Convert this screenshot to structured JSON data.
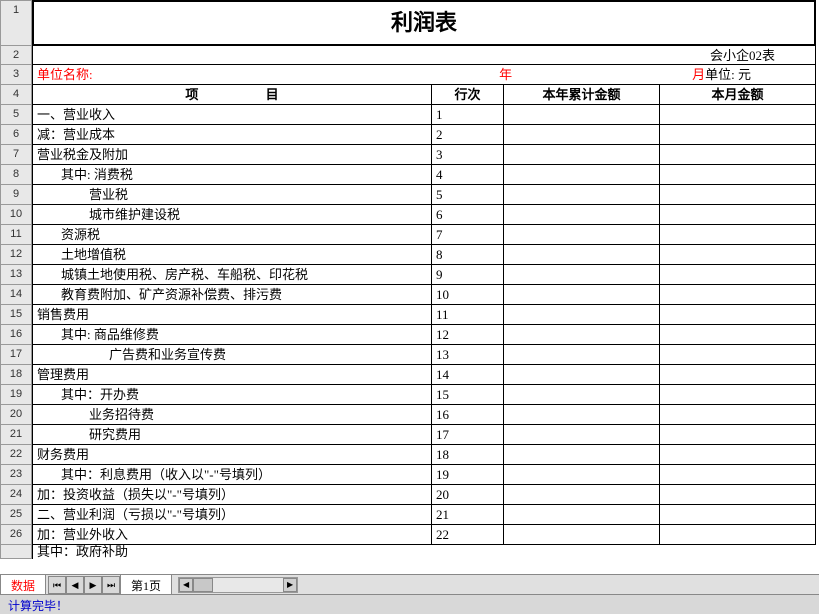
{
  "title": "利润表",
  "form_code": "会小企02表",
  "header_labels": {
    "company": "单位名称:",
    "year": "年",
    "month": "月",
    "unit": "单位: 元"
  },
  "columns": {
    "item": "项    目",
    "line": "行次",
    "ytd": "本年累计金额",
    "month_amt": "本月金额"
  },
  "rows": [
    {
      "n": 5,
      "item": "一、营业收入",
      "line": "1",
      "indent": 0
    },
    {
      "n": 6,
      "item": "减：营业成本",
      "line": "2",
      "indent": 0
    },
    {
      "n": 7,
      "item": "营业税金及附加",
      "line": "3",
      "indent": 0
    },
    {
      "n": 8,
      "item": "其中: 消费税",
      "line": "4",
      "indent": 1
    },
    {
      "n": 9,
      "item": "营业税",
      "line": "5",
      "indent": 2
    },
    {
      "n": 10,
      "item": "城市维护建设税",
      "line": "6",
      "indent": 2
    },
    {
      "n": 11,
      "item": "资源税",
      "line": "7",
      "indent": 1
    },
    {
      "n": 12,
      "item": "土地增值税",
      "line": "8",
      "indent": 1
    },
    {
      "n": 13,
      "item": "城镇土地使用税、房产税、车船税、印花税",
      "line": "9",
      "indent": 1
    },
    {
      "n": 14,
      "item": "教育费附加、矿产资源补偿费、排污费",
      "line": "10",
      "indent": 1
    },
    {
      "n": 15,
      "item": "销售费用",
      "line": "11",
      "indent": 0
    },
    {
      "n": 16,
      "item": "其中: 商品维修费",
      "line": "12",
      "indent": 1
    },
    {
      "n": 17,
      "item": "广告费和业务宣传费",
      "line": "13",
      "indent": 3
    },
    {
      "n": 18,
      "item": "管理费用",
      "line": "14",
      "indent": 0
    },
    {
      "n": 19,
      "item": "其中：开办费",
      "line": "15",
      "indent": 1
    },
    {
      "n": 20,
      "item": "业务招待费",
      "line": "16",
      "indent": 2
    },
    {
      "n": 21,
      "item": "研究费用",
      "line": "17",
      "indent": 2
    },
    {
      "n": 22,
      "item": "财务费用",
      "line": "18",
      "indent": 0
    },
    {
      "n": 23,
      "item": "其中：利息费用（收入以\"-\"号填列）",
      "line": "19",
      "indent": 1
    },
    {
      "n": 24,
      "item": "加：投资收益（损失以\"-\"号填列）",
      "line": "20",
      "indent": 0
    },
    {
      "n": 25,
      "item": "二、营业利润（亏损以\"-\"号填列）",
      "line": "21",
      "indent": 0
    },
    {
      "n": 26,
      "item": "加：营业外收入",
      "line": "22",
      "indent": 0
    }
  ],
  "partial_row": {
    "item": "其中：政府补助"
  },
  "tabs": {
    "active": "数据",
    "page": "第1页"
  },
  "status": "计算完毕！"
}
